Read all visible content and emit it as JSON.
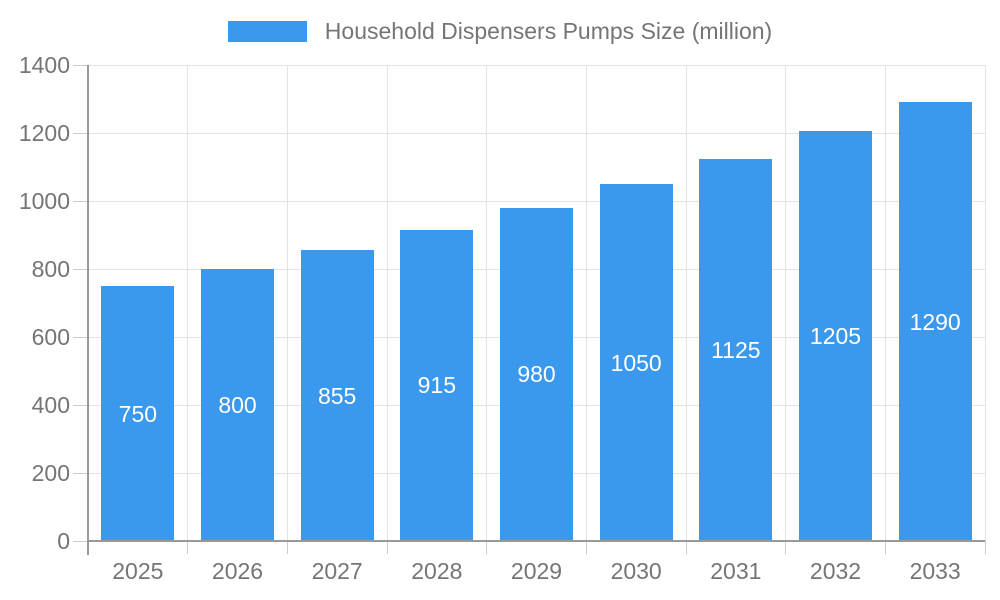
{
  "chart_data": {
    "type": "bar",
    "title": "Household Dispensers Pumps Size (million)",
    "categories": [
      "2025",
      "2026",
      "2027",
      "2028",
      "2029",
      "2030",
      "2031",
      "2032",
      "2033"
    ],
    "series": [
      {
        "name": "Household Dispensers Pumps Size (million)",
        "values": [
          750,
          800,
          855,
          915,
          980,
          1050,
          1125,
          1205,
          1290
        ]
      }
    ],
    "data_labels": [
      "750",
      "800",
      "855",
      "915",
      "980",
      "1050",
      "1125",
      "1205",
      "1290"
    ],
    "xlabel": "",
    "ylabel": "",
    "ylim": [
      0,
      1400
    ],
    "ytick_step": 200,
    "yticks": [
      "0",
      "200",
      "400",
      "600",
      "800",
      "1000",
      "1200",
      "1400"
    ],
    "grid": true,
    "legend_position": "top",
    "colors": {
      "bar": "#3B99ED",
      "data_label": "#ffffff",
      "axis_text": "#757575",
      "gridline": "#e3e3e3",
      "axis_line": "#999999",
      "tick": "#cccccc",
      "background": "#ffffff"
    }
  }
}
